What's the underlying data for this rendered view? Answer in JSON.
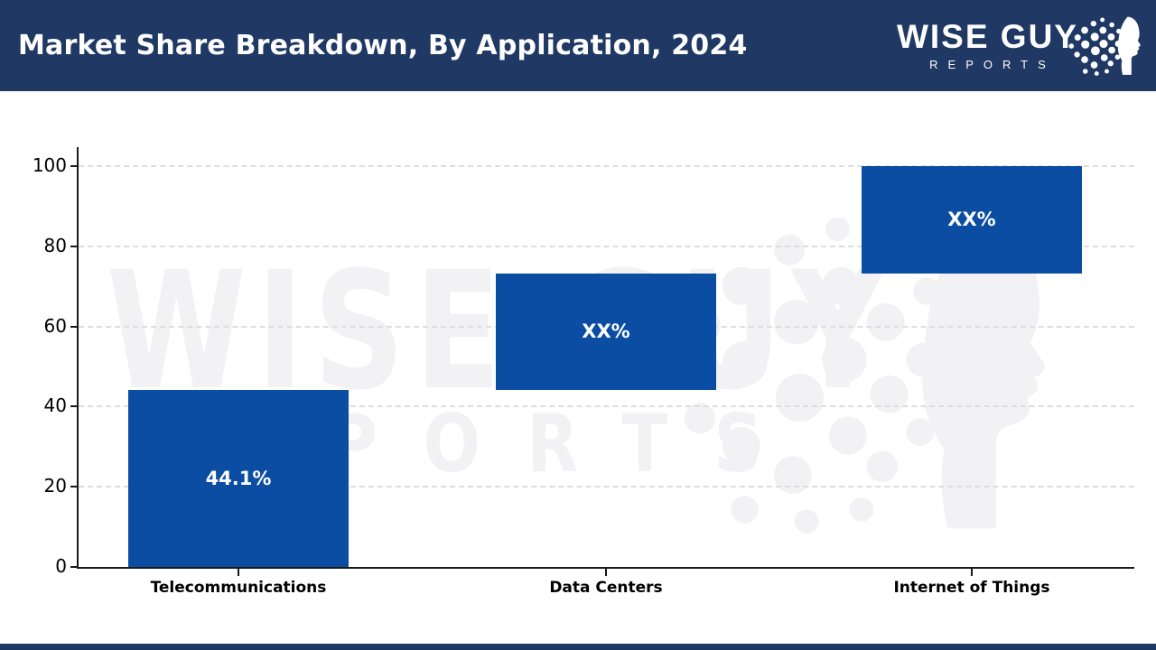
{
  "header": {
    "title": "Market Share Breakdown, By Application, 2024",
    "logo": {
      "line1": "WISE GUY",
      "line2": "REPORTS"
    }
  },
  "watermark": {
    "line1": "WISE GUY",
    "line2": "REPORTS"
  },
  "icons": {
    "logo_face": "face-profile-dots-icon"
  },
  "chart_data": {
    "type": "bar",
    "subtype": "waterfall",
    "title": "Market Share Breakdown, By Application, 2024",
    "categories": [
      "Telecommunications",
      "Data Centers",
      "Internet of Things"
    ],
    "segments": [
      {
        "start": 0,
        "end": 44.1,
        "label": "44.1%"
      },
      {
        "start": 44.1,
        "end": 73.3,
        "label": "XX%"
      },
      {
        "start": 73.3,
        "end": 100,
        "label": "XX%"
      }
    ],
    "yticks": [
      0,
      20,
      40,
      60,
      80,
      100
    ],
    "ylim": [
      0,
      105
    ],
    "xlabel": "",
    "ylabel": "",
    "grid": "horizontal-dashed",
    "legend": "none",
    "bar_color": "#0b4da2",
    "bar_label_color": "#ffffff"
  },
  "colors": {
    "header_bg": "#1f3864",
    "footer_bg": "#1f3864",
    "bar": "#0b4da2",
    "gridline": "#dddde1",
    "axis": "#1a1a1a",
    "watermark": "#f2f2f5"
  }
}
